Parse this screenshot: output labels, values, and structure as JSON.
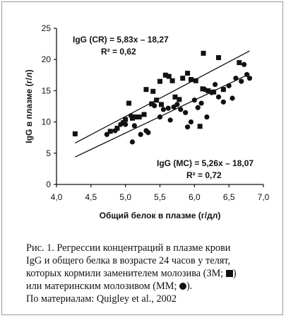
{
  "chart_data": {
    "type": "scatter",
    "xlabel": "Общий белок в плазме (г/дл)",
    "ylabel": "IgG в плазме (г/л)",
    "xlim": [
      4.0,
      7.0
    ],
    "ylim": [
      0,
      25
    ],
    "x_ticks": [
      "4,0",
      "4,5",
      "5,0",
      "5,5",
      "6,0",
      "6,5",
      "7,0"
    ],
    "y_ticks": [
      "0",
      "5",
      "10",
      "15",
      "20",
      "25"
    ],
    "grid": false,
    "series": [
      {
        "marker": "square",
        "points": [
          [
            4.27,
            8.1
          ],
          [
            4.78,
            8.5
          ],
          [
            4.88,
            9.0
          ],
          [
            4.97,
            9.9
          ],
          [
            5.0,
            10.4
          ],
          [
            5.05,
            13.0
          ],
          [
            5.1,
            10.6
          ],
          [
            5.15,
            10.8
          ],
          [
            5.2,
            10.8
          ],
          [
            5.27,
            11.2
          ],
          [
            5.3,
            15.2
          ],
          [
            5.38,
            12.9
          ],
          [
            5.4,
            14.9
          ],
          [
            5.45,
            13.5
          ],
          [
            5.5,
            16.5
          ],
          [
            5.52,
            12.8
          ],
          [
            5.58,
            17.5
          ],
          [
            5.63,
            17.3
          ],
          [
            5.68,
            16.6
          ],
          [
            5.72,
            14.0
          ],
          [
            5.78,
            13.6
          ],
          [
            5.83,
            17.0
          ],
          [
            5.9,
            17.8
          ],
          [
            5.95,
            16.8
          ],
          [
            6.02,
            16.6
          ],
          [
            6.08,
            9.3
          ],
          [
            6.12,
            15.3
          ],
          [
            6.13,
            21.0
          ],
          [
            6.2,
            15.0
          ],
          [
            6.28,
            14.8
          ],
          [
            6.35,
            20.3
          ],
          [
            6.42,
            15.2
          ],
          [
            6.65,
            19.5
          ]
        ]
      },
      {
        "marker": "circle",
        "points": [
          [
            4.73,
            8.0
          ],
          [
            4.85,
            8.6
          ],
          [
            4.93,
            9.6
          ],
          [
            5.0,
            9.6
          ],
          [
            5.08,
            11.0
          ],
          [
            5.1,
            6.8
          ],
          [
            5.13,
            9.4
          ],
          [
            5.22,
            8.0
          ],
          [
            5.3,
            8.6
          ],
          [
            5.33,
            8.3
          ],
          [
            5.42,
            12.6
          ],
          [
            5.5,
            10.8
          ],
          [
            5.55,
            12.0
          ],
          [
            5.62,
            12.2
          ],
          [
            5.65,
            10.3
          ],
          [
            5.7,
            12.4
          ],
          [
            5.75,
            12.8
          ],
          [
            5.8,
            12.0
          ],
          [
            5.87,
            11.5
          ],
          [
            5.9,
            9.2
          ],
          [
            5.95,
            10.0
          ],
          [
            6.0,
            13.5
          ],
          [
            6.05,
            12.3
          ],
          [
            6.1,
            13.0
          ],
          [
            6.15,
            15.2
          ],
          [
            6.18,
            10.8
          ],
          [
            6.25,
            14.7
          ],
          [
            6.3,
            16.0
          ],
          [
            6.35,
            14.0
          ],
          [
            6.42,
            13.2
          ],
          [
            6.5,
            15.8
          ],
          [
            6.55,
            13.8
          ],
          [
            6.6,
            17.0
          ],
          [
            6.68,
            16.5
          ],
          [
            6.72,
            19.2
          ],
          [
            6.76,
            17.6
          ],
          [
            6.8,
            17.0
          ]
        ]
      }
    ],
    "regression_lines": [
      {
        "slope": 5.83,
        "intercept": -18.27,
        "x_range": [
          4.27,
          6.8
        ]
      },
      {
        "slope": 5.26,
        "intercept": -18.07,
        "x_range": [
          4.27,
          6.8
        ]
      }
    ],
    "annotations": [
      {
        "line1": "IgG (CR) = 5,83x – 18,27",
        "line2": "R² = 0,62"
      },
      {
        "line1": "IgG (MC) = 5,26x – 18,07",
        "line2": "R² = 0,72"
      }
    ]
  },
  "caption": {
    "line1": "Рис. 1. Регрессии концентраций в плазме крови",
    "line2": "IgG и общего белка в возрасте 24 часов у телят,",
    "line3_before": "которых кормили заменителем молозива (ЗМ; ",
    "line3_after": ")",
    "line4_before": "или материнским молозивом (ММ; ",
    "line4_after": ").",
    "line5": "По материалам: Quigley et al., 2002"
  }
}
